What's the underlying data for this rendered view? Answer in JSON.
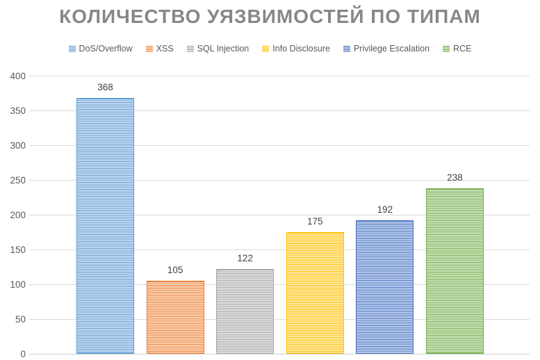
{
  "chart_data": {
    "type": "bar",
    "title": "КОЛИЧЕСТВО УЯЗВИМОСТЕЙ ПО ТИПАМ",
    "categories": [
      "DoS/Overflow",
      "XSS",
      "SQL Injection",
      "Info Disclosure",
      "Privilege Escalation",
      "RCE"
    ],
    "values": [
      368,
      105,
      122,
      175,
      192,
      238
    ],
    "bar_colors": [
      "#5B9BD5",
      "#ED7D31",
      "#A5A5A5",
      "#FFC000",
      "#4472C4",
      "#70AD47"
    ],
    "bar_tints": [
      "#D9E5F3",
      "#FBE2CF",
      "#E9E9E9",
      "#FFF0C2",
      "#D2DCF0",
      "#DEEBD3"
    ],
    "fill_pattern": "light-horizontal-stripes",
    "xlabel": "",
    "ylabel": "",
    "ylim": [
      0,
      400
    ],
    "yticks": [
      0,
      50,
      100,
      150,
      200,
      250,
      300,
      350,
      400
    ],
    "grid": true,
    "legend_position": "top",
    "colors": {
      "title_text": "#878787",
      "axis_text": "#595959",
      "value_label_text": "#404040",
      "gridline": "#D9D9D9",
      "background": "#FFFFFF"
    }
  }
}
